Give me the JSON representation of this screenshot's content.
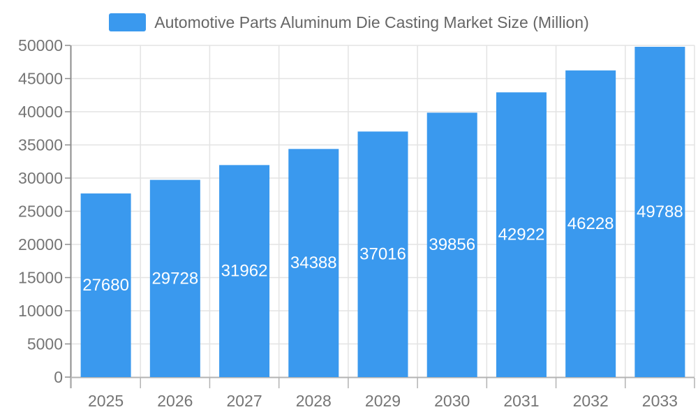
{
  "legend": {
    "label": "Automotive Parts Aluminum Die Casting Market Size (Million)"
  },
  "chart_data": {
    "type": "bar",
    "title": "Automotive Parts Aluminum Die Casting Market Size (Million)",
    "series_name": "Automotive Parts Aluminum Die Casting Market Size (Million)",
    "categories": [
      "2025",
      "2026",
      "2027",
      "2028",
      "2029",
      "2030",
      "2031",
      "2032",
      "2033"
    ],
    "values": [
      27680,
      29728,
      31962,
      34388,
      37016,
      39856,
      42922,
      46228,
      49788
    ],
    "value_labels": [
      "27680",
      "29728",
      "31962",
      "34388",
      "37016",
      "39856",
      "42922",
      "46228",
      "49788"
    ],
    "xlabel": "",
    "ylabel": "",
    "ylim": [
      0,
      50000
    ],
    "y_tick_step": 5000,
    "y_tick_labels": [
      "0",
      "5000",
      "10000",
      "15000",
      "20000",
      "25000",
      "30000",
      "35000",
      "40000",
      "45000",
      "50000"
    ],
    "grid": true,
    "legend_position": "top",
    "colors": {
      "bar": "#3A99EE",
      "value_label": "#ffffff",
      "gridline": "#e3e3e3",
      "y_axis_line": "#8c8c8c",
      "x_axis_line": "#b3b3b3",
      "tick_label": "#757575",
      "legend_text": "#666666",
      "background": "#ffffff"
    }
  }
}
